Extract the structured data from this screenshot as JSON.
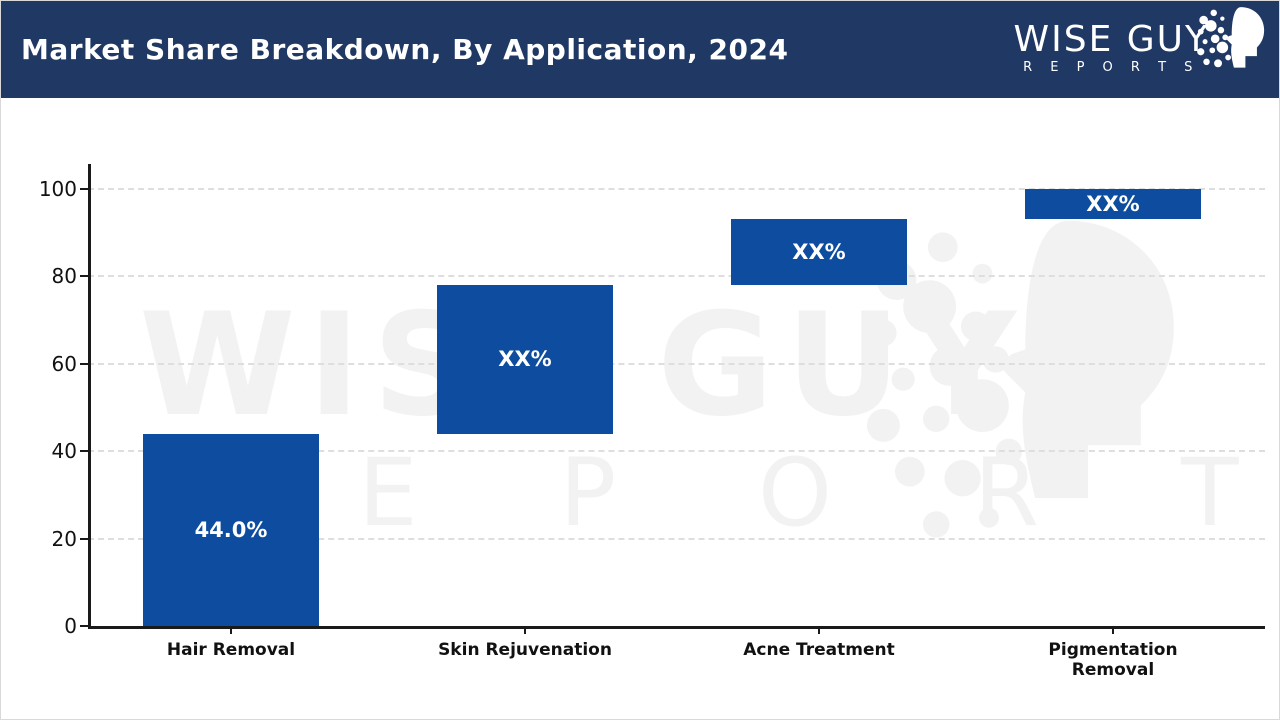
{
  "header": {
    "title": "Market Share Breakdown, By Application, 2024",
    "logo": {
      "name": "WISE GUY",
      "sub": "R E P O R T S"
    }
  },
  "watermark": {
    "line1": "WISE GUY",
    "line2": "R E P O R T S"
  },
  "colors": {
    "header_bg": "#1F3864",
    "bar_fill": "#0D4C9E",
    "grid_line": "#DEDEDE",
    "axis_line": "#1A1A1A",
    "bar_label_text": "#FFFFFF",
    "tick_label_text": "#111111",
    "watermark": "#F2F2F2"
  },
  "chart_data": {
    "type": "bar",
    "subtype": "waterfall",
    "title": "Market Share Breakdown, By Application, 2024",
    "unit": "%",
    "categories": [
      "Hair Removal",
      "Skin Rejuvenation",
      "Acne Treatment",
      "Pigmentation\nRemoval"
    ],
    "series": [
      {
        "name": "Market Share",
        "segments": [
          {
            "category": "Hair Removal",
            "start": 0,
            "end": 44,
            "label": "44.0%"
          },
          {
            "category": "Skin Rejuvenation",
            "start": 44,
            "end": 78,
            "label": "XX%"
          },
          {
            "category": "Acne Treatment",
            "start": 78,
            "end": 93,
            "label": "XX%"
          },
          {
            "category": "Pigmentation Removal",
            "start": 93,
            "end": 100,
            "label": "XX%"
          }
        ]
      }
    ],
    "yticks": [
      0,
      20,
      40,
      60,
      80,
      100
    ],
    "ylim": [
      0,
      105.7
    ],
    "xlabel": "",
    "ylabel": "",
    "grid": "dashed-horizontal",
    "legend": "none"
  }
}
